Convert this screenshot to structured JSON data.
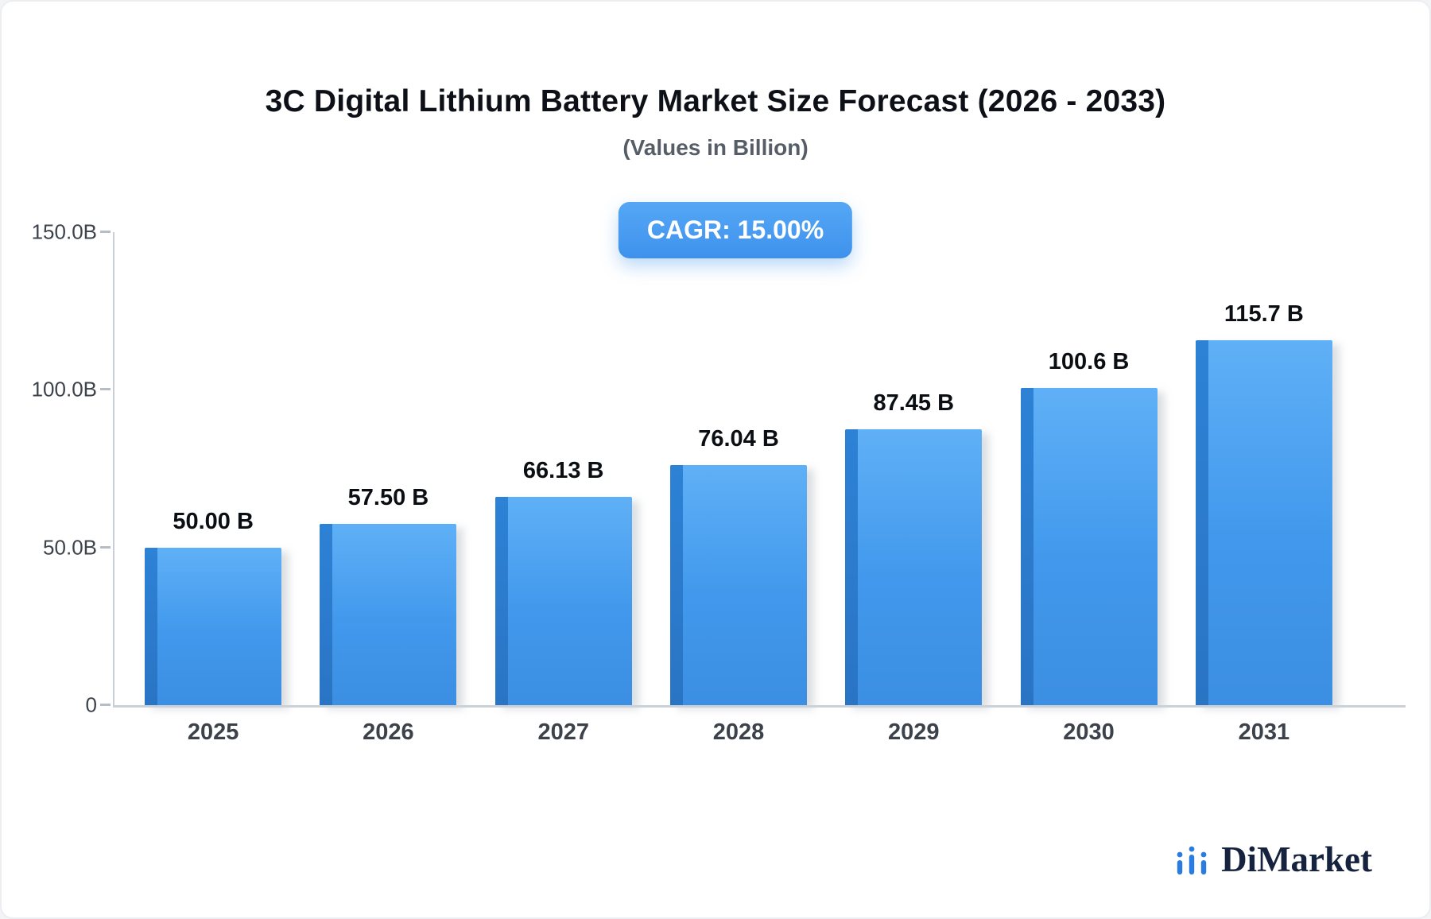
{
  "header": {
    "title": "3C Digital Lithium Battery Market Size Forecast (2026 - 2033)",
    "subtitle": "(Values in Billion)",
    "cagr_label": "CAGR: 15.00%"
  },
  "chart_data": {
    "type": "bar",
    "title": "3C Digital Lithium Battery Market Size Forecast (2026 - 2033)",
    "subtitle": "(Values in Billion)",
    "categories": [
      "2025",
      "2026",
      "2027",
      "2028",
      "2029",
      "2030",
      "2031"
    ],
    "values": [
      50.0,
      57.5,
      66.13,
      76.04,
      87.45,
      100.6,
      115.7
    ],
    "value_labels": [
      "50.00 B",
      "57.50 B",
      "66.13 B",
      "76.04 B",
      "87.45 B",
      "100.6 B",
      "115.7 B"
    ],
    "xlabel": "",
    "ylabel": "",
    "ylim": [
      0,
      150
    ],
    "yticks": [
      {
        "label": "150.0B",
        "value": 150
      },
      {
        "label": "100.0B",
        "value": 100
      },
      {
        "label": "50.0B",
        "value": 50
      },
      {
        "label": "0",
        "value": 0
      }
    ],
    "grid": false,
    "legend": "none",
    "annotation": "CAGR: 15.00%"
  },
  "branding": {
    "logo_text": "DiMarket",
    "logo_icon": "bar-chart-icon"
  },
  "colors": {
    "bar_main": "#4198ec",
    "bar_main_light": "#5fb0f6",
    "bar_left_edge": "#2a74c4",
    "badge_blue": "#3e92ec",
    "axis_gray": "#c9ced4",
    "title_text": "#0d1117",
    "subtitle_text": "#565d66",
    "brand_navy": "#16233f",
    "brand_blue": "#2b7ce0",
    "background": "#ffffff"
  }
}
